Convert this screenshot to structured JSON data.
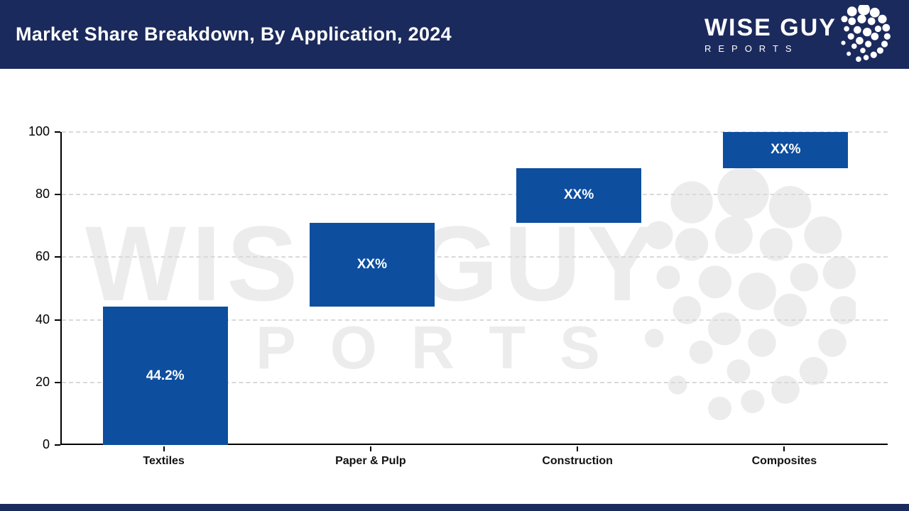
{
  "header": {
    "title": "Market Share Breakdown, By Application, 2024",
    "brand_line1": "WISE GUY",
    "brand_line2": "REPORTS"
  },
  "watermark": {
    "line1": "WISE GUY",
    "line2": "PORTS"
  },
  "colors": {
    "header_bg": "#1b2a5c",
    "bar": "#0d4e9f",
    "gridline": "#d9d9d9",
    "watermark": "#ececec",
    "axis": "#000000",
    "bar_label_text": "#ffffff"
  },
  "chart_data": {
    "type": "bar",
    "variant": "waterfall",
    "title": "Market Share Breakdown, By Application, 2024",
    "categories": [
      "Textiles",
      "Paper & Pulp",
      "Construction",
      "Composites"
    ],
    "series": [
      {
        "name": "Market Share",
        "data": [
          {
            "category": "Textiles",
            "start": 0,
            "end": 44.2,
            "label": "44.2%"
          },
          {
            "category": "Paper & Pulp",
            "start": 44.2,
            "end": 71,
            "label": "XX%"
          },
          {
            "category": "Construction",
            "start": 71,
            "end": 88.5,
            "label": "XX%"
          },
          {
            "category": "Composites",
            "start": 88.5,
            "end": 100,
            "label": "XX%"
          }
        ]
      }
    ],
    "xlabel": "",
    "ylabel": "",
    "ylim": [
      0,
      100
    ],
    "yticks": [
      0,
      20,
      40,
      60,
      80,
      100
    ],
    "grid": true,
    "legend": false,
    "bar_color": "#0d4e9f"
  }
}
